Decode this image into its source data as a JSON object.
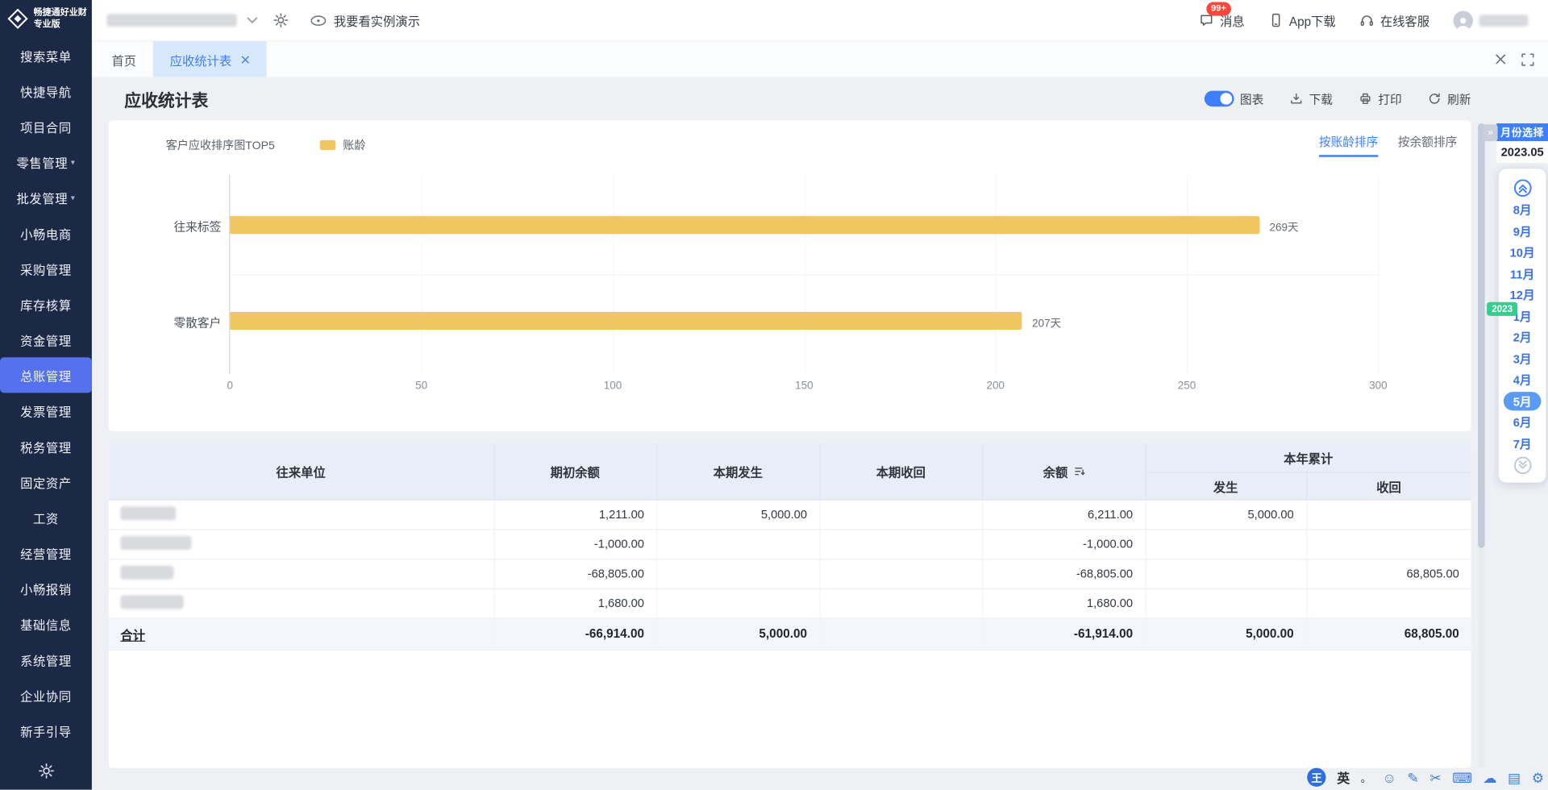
{
  "colors": {
    "accent_blue": "#3D7FFE",
    "sidebar_bg": "#1C2946",
    "sidebar_active_bg": "#5571EE",
    "bar_yellow": "#F0C65F",
    "message_badge_red": "#F5483B",
    "year_badge_green": "#35CE8D",
    "selected_month_blue": "#5B9BF8"
  },
  "app": {
    "logo_title": "畅捷通好业财",
    "logo_subtitle": "专业版"
  },
  "sidebar": {
    "items": [
      {
        "label": "搜索菜单",
        "caret": false,
        "active": false
      },
      {
        "label": "快捷导航",
        "caret": false,
        "active": false
      },
      {
        "label": "项目合同",
        "caret": false,
        "active": false
      },
      {
        "label": "零售管理",
        "caret": true,
        "active": false
      },
      {
        "label": "批发管理",
        "caret": true,
        "active": false
      },
      {
        "label": "小畅电商",
        "caret": false,
        "active": false
      },
      {
        "label": "采购管理",
        "caret": false,
        "active": false
      },
      {
        "label": "库存核算",
        "caret": false,
        "active": false
      },
      {
        "label": "资金管理",
        "caret": false,
        "active": false
      },
      {
        "label": "总账管理",
        "caret": false,
        "active": true
      },
      {
        "label": "发票管理",
        "caret": false,
        "active": false
      },
      {
        "label": "税务管理",
        "caret": false,
        "active": false
      },
      {
        "label": "固定资产",
        "caret": false,
        "active": false
      },
      {
        "label": "工资",
        "caret": false,
        "active": false
      },
      {
        "label": "经营管理",
        "caret": false,
        "active": false
      },
      {
        "label": "小畅报销",
        "caret": false,
        "active": false
      },
      {
        "label": "基础信息",
        "caret": false,
        "active": false
      },
      {
        "label": "系统管理",
        "caret": false,
        "active": false
      },
      {
        "label": "企业协同",
        "caret": false,
        "active": false
      },
      {
        "label": "新手引导",
        "caret": false,
        "active": false
      }
    ]
  },
  "topbar": {
    "demo_label": "我要看实例演示",
    "message_label": "消息",
    "message_badge": "99+",
    "app_download_label": "App下载",
    "service_label": "在线客服"
  },
  "tabs": {
    "items": [
      {
        "label": "首页",
        "active": false
      },
      {
        "label": "应收统计表",
        "active": true
      }
    ]
  },
  "page": {
    "title": "应收统计表",
    "chart_toggle_label": "图表",
    "download_label": "下载",
    "print_label": "打印",
    "refresh_label": "刷新"
  },
  "chart_data": {
    "type": "bar",
    "orientation": "horizontal",
    "title": "客户应收排序图TOP5",
    "legend": [
      {
        "label": "账龄",
        "color": "#F0C65F"
      }
    ],
    "categories": [
      "往来标签",
      "零散客户"
    ],
    "values": [
      269,
      207
    ],
    "value_labels": [
      "269天",
      "207天"
    ],
    "unit": "天",
    "x_ticks": [
      0,
      50,
      100,
      150,
      200,
      250,
      300
    ],
    "xlim": [
      0,
      300
    ],
    "grid": false,
    "legend_position": "top-left",
    "sort_tabs": [
      {
        "label": "按账龄排序",
        "active": true
      },
      {
        "label": "按余额排序",
        "active": false
      }
    ]
  },
  "table": {
    "headers": {
      "partner": "往来单位",
      "opening": "期初余额",
      "incurred": "本期发生",
      "received": "本期收回",
      "balance": "余额",
      "ytd": "本年累计",
      "ytd_incurred": "发生",
      "ytd_received": "收回"
    },
    "rows": [
      {
        "partner_redacted": true,
        "values": [
          "1,211.00",
          "5,000.00",
          "",
          "6,211.00",
          "5,000.00",
          ""
        ]
      },
      {
        "partner_redacted": true,
        "values": [
          "-1,000.00",
          "",
          "",
          "-1,000.00",
          "",
          ""
        ]
      },
      {
        "partner_redacted": true,
        "values": [
          "-68,805.00",
          "",
          "",
          "-68,805.00",
          "",
          "68,805.00"
        ]
      },
      {
        "partner_redacted": true,
        "values": [
          "1,680.00",
          "",
          "",
          "1,680.00",
          "",
          ""
        ]
      }
    ],
    "total": {
      "label": "合计",
      "values": [
        "-66,914.00",
        "5,000.00",
        "",
        "-61,914.00",
        "5,000.00",
        "68,805.00"
      ]
    }
  },
  "month_panel": {
    "title": "月份选择",
    "current": "2023.05",
    "year_badge": "2023",
    "collapse_glyph": "»",
    "months": [
      {
        "label": "8月",
        "selected": false
      },
      {
        "label": "9月",
        "selected": false
      },
      {
        "label": "10月",
        "selected": false
      },
      {
        "label": "11月",
        "selected": false
      },
      {
        "label": "12月",
        "selected": false
      },
      {
        "label": "1月",
        "selected": false
      },
      {
        "label": "2月",
        "selected": false
      },
      {
        "label": "3月",
        "selected": false
      },
      {
        "label": "4月",
        "selected": false
      },
      {
        "label": "5月",
        "selected": true
      },
      {
        "label": "6月",
        "selected": false
      },
      {
        "label": "7月",
        "selected": false
      }
    ]
  },
  "ime": {
    "primary_label": "王",
    "mode_label": "英",
    "punct_label": "。"
  }
}
